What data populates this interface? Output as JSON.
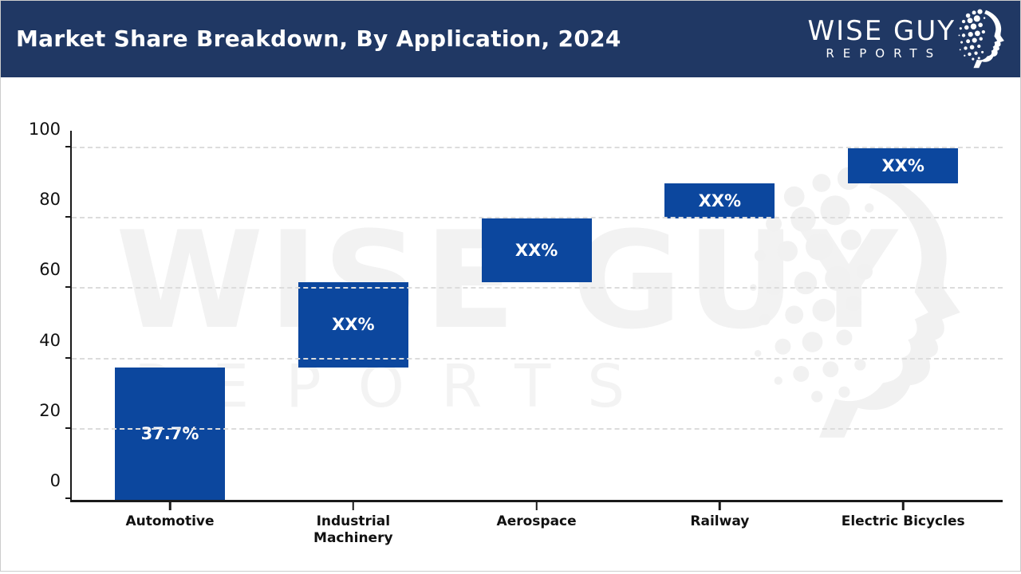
{
  "header": {
    "title": "Market Share Breakdown, By Application, 2024",
    "bg_color": "#203864",
    "logo": {
      "wordmark": "WISE GUY",
      "subtext": "REPORTS"
    }
  },
  "watermark": {
    "line1": "WISE GUY",
    "line2": "REPORTS"
  },
  "chart_data": {
    "type": "bar",
    "subtype": "waterfall",
    "title": "Market Share Breakdown, By Application, 2024",
    "categories": [
      "Automotive",
      "Industrial Machinery",
      "Aerospace",
      "Railway",
      "Electric Bicycles"
    ],
    "segments": [
      {
        "category": "Automotive",
        "start": 0,
        "end": 37.7,
        "label": "37.7%"
      },
      {
        "category": "Industrial Machinery",
        "start": 37.7,
        "end": 62,
        "label": "XX%"
      },
      {
        "category": "Aerospace",
        "start": 62,
        "end": 80,
        "label": "XX%"
      },
      {
        "category": "Railway",
        "start": 80,
        "end": 90,
        "label": "XX%"
      },
      {
        "category": "Electric Bicycles",
        "start": 90,
        "end": 100,
        "label": "XX%"
      }
    ],
    "yticks": [
      0,
      20,
      40,
      60,
      80,
      100
    ],
    "ylim": [
      0,
      105
    ],
    "xlabel": "",
    "ylabel": "",
    "grid": "horizontal-dashed",
    "legend": "none",
    "bar_color": "#0c479e",
    "bar_label_color": "#ffffff",
    "axis_color": "#1a1a1a",
    "gridline_color": "#dcdcdc"
  }
}
